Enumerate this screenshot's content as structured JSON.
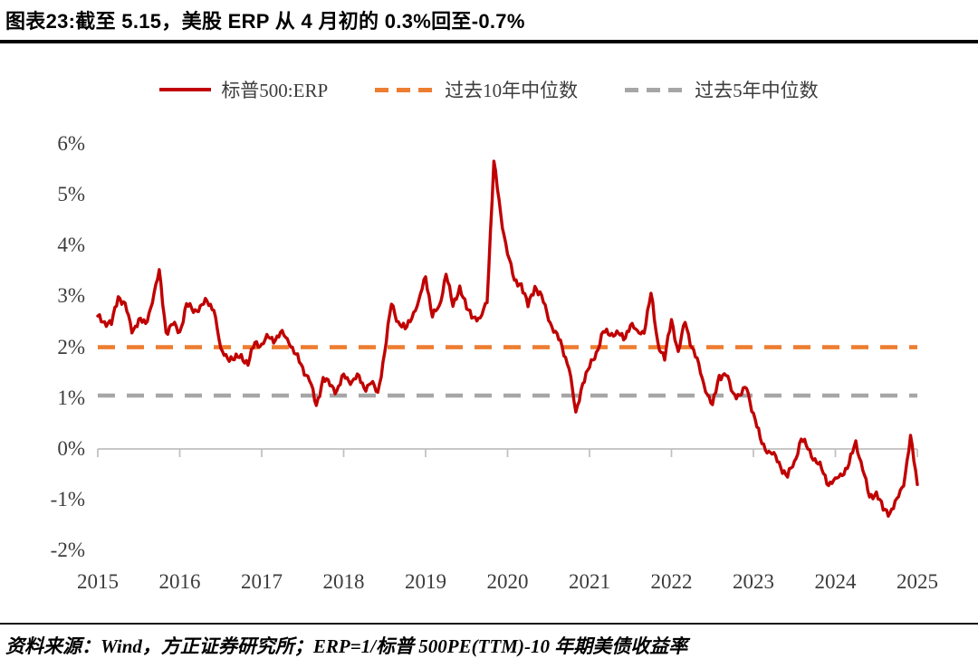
{
  "figure": {
    "title": "图表23:截至 5.15，美股 ERP 从 4 月初的 0.3%回至-0.7%",
    "source_note": "资料来源：Wind，方正证券研究所；ERP=1/标普 500PE(TTM)-10 年期美债收益率"
  },
  "colors": {
    "erp_line": "#C00000",
    "median10y": "#ED7D31",
    "median5y": "#A6A6A6",
    "axis": "#BFBFBF",
    "tick_text": "#3c3c3c"
  },
  "legend": [
    {
      "label": "标普500:ERP",
      "color": "#C00000",
      "style": "solid"
    },
    {
      "label": "过去10年中位数",
      "color": "#ED7D31",
      "style": "dashed"
    },
    {
      "label": "过去5年中位数",
      "color": "#A6A6A6",
      "style": "dashed"
    }
  ],
  "chart_data": {
    "type": "line",
    "title": "截至 5.15，美股 ERP 从 4 月初的 0.3%回至-0.7%",
    "xlabel": "",
    "ylabel": "",
    "ylim": [
      -2,
      6
    ],
    "grid": false,
    "legend_position": "top",
    "x_start": "2015-05",
    "x_end": "2025-05",
    "frequency": "monthly",
    "xticks": [
      "2015",
      "2016",
      "2017",
      "2018",
      "2019",
      "2020",
      "2021",
      "2022",
      "2023",
      "2024",
      "2025"
    ],
    "yticks": [
      {
        "label": "6%",
        "value": 6
      },
      {
        "label": "5%",
        "value": 5
      },
      {
        "label": "4%",
        "value": 4
      },
      {
        "label": "3%",
        "value": 3
      },
      {
        "label": "2%",
        "value": 2
      },
      {
        "label": "1%",
        "value": 1
      },
      {
        "label": "0%",
        "value": 0
      },
      {
        "label": "-1%",
        "value": -1
      },
      {
        "label": "-2%",
        "value": -2
      }
    ],
    "series": [
      {
        "name": "标普500:ERP",
        "color": "#C00000",
        "style": "solid",
        "values": [
          2.6,
          2.5,
          2.45,
          3.0,
          2.85,
          2.3,
          2.55,
          2.45,
          2.9,
          3.5,
          2.3,
          2.45,
          2.3,
          2.85,
          2.7,
          2.8,
          2.9,
          2.75,
          1.95,
          1.8,
          1.75,
          1.85,
          1.65,
          2.1,
          2.05,
          2.2,
          2.15,
          2.3,
          2.1,
          1.85,
          1.6,
          1.35,
          0.85,
          1.4,
          1.25,
          1.15,
          1.45,
          1.3,
          1.45,
          1.2,
          1.3,
          1.1,
          1.9,
          2.85,
          2.5,
          2.35,
          2.6,
          2.9,
          3.4,
          2.6,
          2.8,
          3.45,
          2.8,
          3.2,
          2.75,
          2.6,
          2.55,
          2.9,
          5.65,
          4.6,
          3.85,
          3.3,
          3.25,
          2.8,
          3.2,
          3.0,
          2.55,
          2.3,
          2.0,
          1.6,
          0.7,
          1.3,
          1.6,
          1.9,
          2.3,
          2.25,
          2.3,
          2.15,
          2.45,
          2.3,
          2.3,
          3.05,
          2.1,
          1.75,
          2.55,
          1.9,
          2.5,
          2.0,
          1.65,
          1.15,
          0.85,
          1.45,
          1.45,
          1.1,
          1.05,
          1.2,
          0.7,
          0.2,
          -0.05,
          -0.1,
          -0.35,
          -0.55,
          -0.25,
          0.2,
          0.0,
          -0.2,
          -0.4,
          -0.7,
          -0.6,
          -0.5,
          -0.3,
          0.15,
          -0.4,
          -0.95,
          -0.85,
          -1.2,
          -1.25,
          -1.0,
          -0.7,
          0.25,
          -0.7
        ]
      },
      {
        "name": "过去10年中位数",
        "color": "#ED7D31",
        "style": "dashed",
        "constant_value": 2.0
      },
      {
        "name": "过去5年中位数",
        "color": "#A6A6A6",
        "style": "dashed",
        "constant_value": 1.05
      }
    ],
    "annotations": {
      "peak_2020_03": 5.65,
      "april_2025_start": 0.3,
      "end_2025_05_15": -0.7
    }
  }
}
